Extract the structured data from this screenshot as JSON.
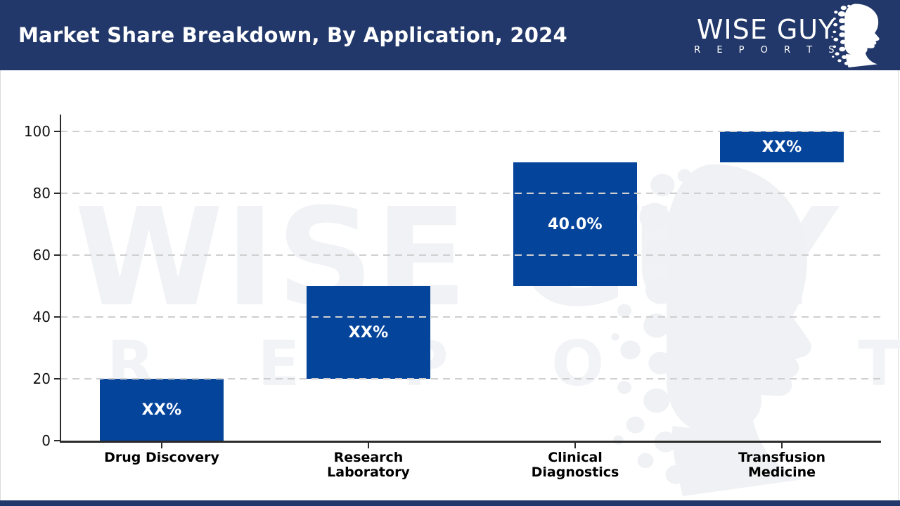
{
  "header": {
    "title": "Market Share Breakdown, By Application, 2024",
    "logo": {
      "line1": "WISE GUY",
      "line2": "R E P O R T S"
    }
  },
  "watermark": {
    "line1": "WISE GUY",
    "line2": "R E P O R T S"
  },
  "colors": {
    "header_bg": "#22386a",
    "bar": "#05449b",
    "grid": "#cfcfcf",
    "axis": "#2b2b2b",
    "watermark": "#f1f2f5",
    "bar_label_text": "#ffffff",
    "title_text": "#ffffff"
  },
  "chart_data": {
    "type": "bar",
    "variant": "waterfall",
    "title": "Market Share Breakdown, By Application, 2024",
    "xlabel": "",
    "ylabel": "",
    "ylim": [
      0,
      105
    ],
    "yticks": [
      0,
      20,
      40,
      60,
      80,
      100
    ],
    "grid": "horizontal-dashed",
    "legend": "none",
    "categories": [
      "Drug Discovery",
      "Research Laboratory",
      "Clinical Diagnostics",
      "Transfusion Medicine"
    ],
    "category_label_lines": [
      [
        "Drug Discovery"
      ],
      [
        "Research",
        "Laboratory"
      ],
      [
        "Clinical",
        "Diagnostics"
      ],
      [
        "Transfusion",
        "Medicine"
      ]
    ],
    "series": [
      {
        "name": "Market Share",
        "unit": "%",
        "segments": [
          {
            "category": "Drug Discovery",
            "start": 0,
            "end": 20,
            "label": "XX%"
          },
          {
            "category": "Research Laboratory",
            "start": 20,
            "end": 50,
            "label": "XX%"
          },
          {
            "category": "Clinical Diagnostics",
            "start": 50,
            "end": 90,
            "label": "40.0%"
          },
          {
            "category": "Transfusion Medicine",
            "start": 90,
            "end": 100,
            "label": "XX%"
          }
        ]
      }
    ]
  }
}
